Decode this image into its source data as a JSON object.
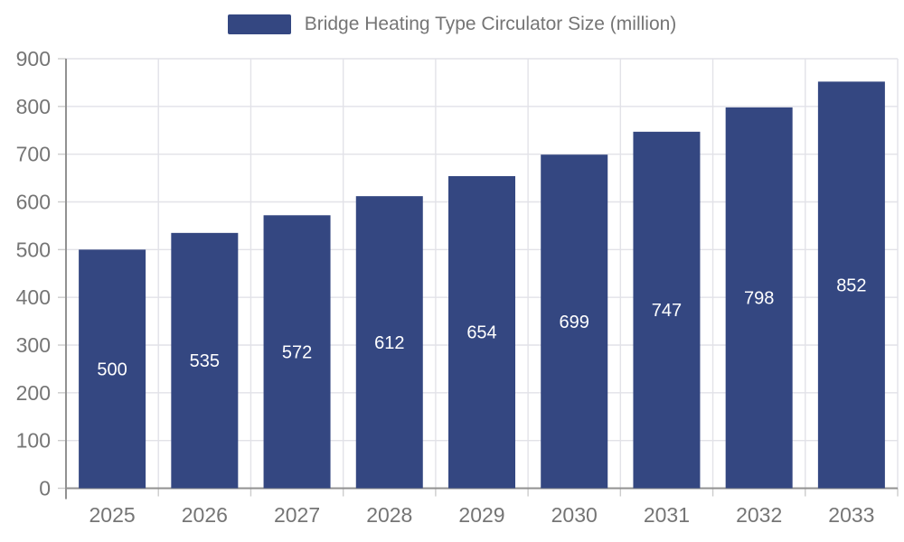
{
  "legend": {
    "label": "Bridge Heating Type Circulator Size (million)",
    "swatch_color": "#344781"
  },
  "chart_data": {
    "type": "bar",
    "title": "Bridge Heating Type Circulator Size (million)",
    "categories": [
      "2025",
      "2026",
      "2027",
      "2028",
      "2029",
      "2030",
      "2031",
      "2032",
      "2033"
    ],
    "values": [
      500,
      535,
      572,
      612,
      654,
      699,
      747,
      798,
      852
    ],
    "series": [
      {
        "name": "Bridge Heating Type Circulator Size (million)",
        "values": [
          500,
          535,
          572,
          612,
          654,
          699,
          747,
          798,
          852
        ]
      }
    ],
    "xlabel": "",
    "ylabel": "",
    "ylim": [
      0,
      900
    ],
    "ytick_interval": 100,
    "ytick_labels": [
      "0",
      "100",
      "200",
      "300",
      "400",
      "500",
      "600",
      "700",
      "800",
      "900"
    ],
    "grid": true,
    "legend_position": "top",
    "colors": {
      "bar": "#344781",
      "value_label": "#ffffff",
      "axis_line": "#919191",
      "gridline": "#e2e2e8",
      "tick": "#cccccc",
      "axis_text": "#757575"
    }
  }
}
